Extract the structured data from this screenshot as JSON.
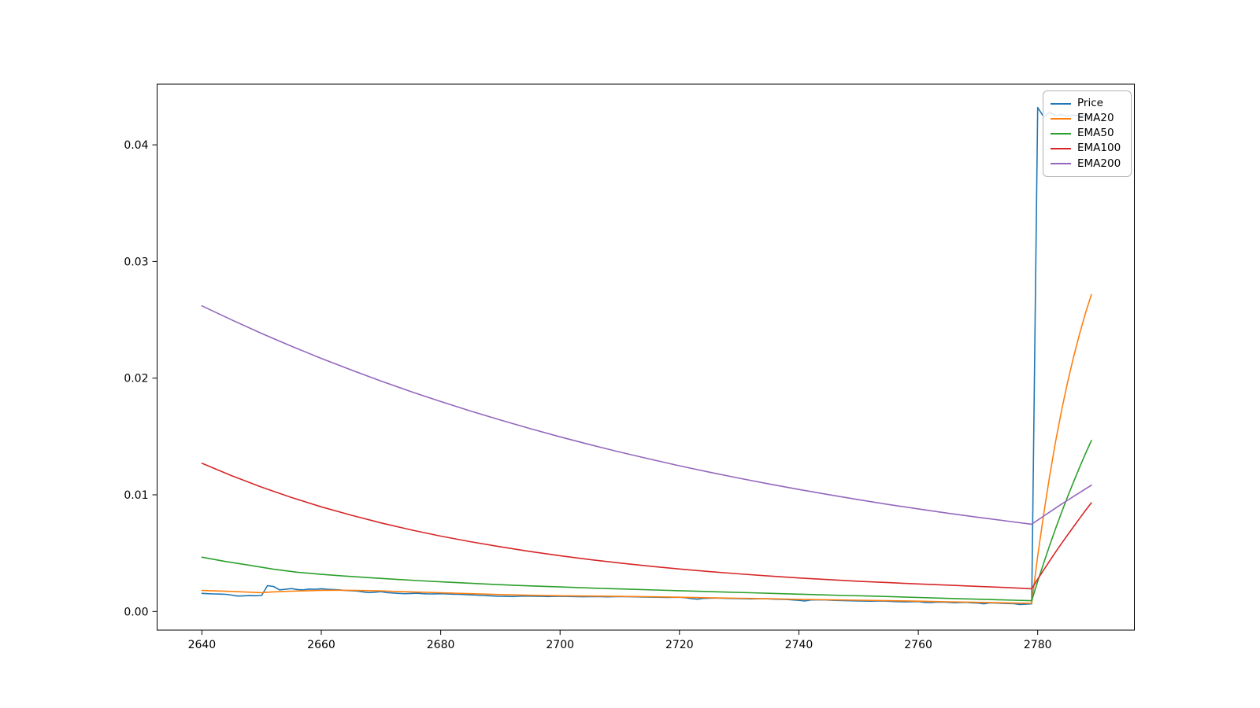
{
  "figure": {
    "background": "#ffffff"
  },
  "chart_data": {
    "type": "line",
    "title": "",
    "xlabel": "",
    "ylabel": "",
    "grid": false,
    "legend_position": "upper right",
    "xlim": [
      2632.5,
      2796.2
    ],
    "ylim": [
      -0.0016,
      0.0452
    ],
    "x_ticks": [
      2640,
      2660,
      2680,
      2700,
      2720,
      2740,
      2760,
      2780
    ],
    "y_ticks": [
      0.0,
      0.01,
      0.02,
      0.03,
      0.04
    ],
    "y_tick_labels": [
      "0.00",
      "0.01",
      "0.02",
      "0.03",
      "0.04"
    ],
    "series": [
      {
        "name": "Price",
        "color": "#1f77b4",
        "points": [
          [
            2640,
            0.00155
          ],
          [
            2641,
            0.00152
          ],
          [
            2642,
            0.0015
          ],
          [
            2643,
            0.00149
          ],
          [
            2644,
            0.00147
          ],
          [
            2645,
            0.0014
          ],
          [
            2646,
            0.00132
          ],
          [
            2647,
            0.00134
          ],
          [
            2648,
            0.00136
          ],
          [
            2649,
            0.00135
          ],
          [
            2650,
            0.00137
          ],
          [
            2651,
            0.00222
          ],
          [
            2652,
            0.00214
          ],
          [
            2653,
            0.00185
          ],
          [
            2654,
            0.0019
          ],
          [
            2655,
            0.00196
          ],
          [
            2656,
            0.00188
          ],
          [
            2657,
            0.00185
          ],
          [
            2658,
            0.00192
          ],
          [
            2659,
            0.0019
          ],
          [
            2660,
            0.00195
          ],
          [
            2661,
            0.0019
          ],
          [
            2662,
            0.00188
          ],
          [
            2663,
            0.00185
          ],
          [
            2664,
            0.0018
          ],
          [
            2665,
            0.00178
          ],
          [
            2666,
            0.00175
          ],
          [
            2667,
            0.00168
          ],
          [
            2668,
            0.00162
          ],
          [
            2669,
            0.00165
          ],
          [
            2670,
            0.0017
          ],
          [
            2671,
            0.00162
          ],
          [
            2672,
            0.00158
          ],
          [
            2673,
            0.00155
          ],
          [
            2674,
            0.00152
          ],
          [
            2675,
            0.00154
          ],
          [
            2676,
            0.00156
          ],
          [
            2677,
            0.00152
          ],
          [
            2678,
            0.0015
          ],
          [
            2679,
            0.00151
          ],
          [
            2680,
            0.00152
          ],
          [
            2681,
            0.0015
          ],
          [
            2682,
            0.00148
          ],
          [
            2683,
            0.00147
          ],
          [
            2684,
            0.00145
          ],
          [
            2685,
            0.00142
          ],
          [
            2686,
            0.0014
          ],
          [
            2687,
            0.00137
          ],
          [
            2688,
            0.00135
          ],
          [
            2689,
            0.00132
          ],
          [
            2690,
            0.0013
          ],
          [
            2691,
            0.00129
          ],
          [
            2692,
            0.00128
          ],
          [
            2693,
            0.0013
          ],
          [
            2694,
            0.00132
          ],
          [
            2695,
            0.00131
          ],
          [
            2696,
            0.0013
          ],
          [
            2697,
            0.00129
          ],
          [
            2698,
            0.00128
          ],
          [
            2699,
            0.00129
          ],
          [
            2700,
            0.0013
          ],
          [
            2702,
            0.00128
          ],
          [
            2704,
            0.00126
          ],
          [
            2706,
            0.00128
          ],
          [
            2708,
            0.00125
          ],
          [
            2710,
            0.00128
          ],
          [
            2712,
            0.00126
          ],
          [
            2714,
            0.00124
          ],
          [
            2716,
            0.00122
          ],
          [
            2718,
            0.0012
          ],
          [
            2720,
            0.00122
          ],
          [
            2721,
            0.00118
          ],
          [
            2722,
            0.0011
          ],
          [
            2723,
            0.00105
          ],
          [
            2724,
            0.00112
          ],
          [
            2725,
            0.00114
          ],
          [
            2726,
            0.00115
          ],
          [
            2728,
            0.00112
          ],
          [
            2730,
            0.0011
          ],
          [
            2732,
            0.00108
          ],
          [
            2734,
            0.0011
          ],
          [
            2736,
            0.00105
          ],
          [
            2738,
            0.00102
          ],
          [
            2740,
            0.00095
          ],
          [
            2741,
            0.0009
          ],
          [
            2742,
            0.00098
          ],
          [
            2744,
            0.001
          ],
          [
            2746,
            0.00095
          ],
          [
            2748,
            0.00092
          ],
          [
            2750,
            0.0009
          ],
          [
            2752,
            0.00088
          ],
          [
            2754,
            0.0009
          ],
          [
            2756,
            0.00085
          ],
          [
            2758,
            0.00082
          ],
          [
            2760,
            0.00085
          ],
          [
            2761,
            0.00078
          ],
          [
            2762,
            0.00076
          ],
          [
            2763,
            0.0008
          ],
          [
            2764,
            0.00081
          ],
          [
            2765,
            0.00078
          ],
          [
            2766,
            0.00075
          ],
          [
            2767,
            0.00077
          ],
          [
            2768,
            0.00078
          ],
          [
            2769,
            0.00074
          ],
          [
            2770,
            0.00072
          ],
          [
            2771,
            0.00065
          ],
          [
            2772,
            0.00074
          ],
          [
            2773,
            0.00072
          ],
          [
            2774,
            0.0007
          ],
          [
            2775,
            0.00068
          ],
          [
            2776,
            0.00067
          ],
          [
            2777,
            0.0006
          ],
          [
            2778,
            0.00062
          ],
          [
            2779,
            0.00065
          ],
          [
            2780,
            0.0432
          ],
          [
            2781,
            0.0424
          ],
          [
            2782,
            0.0428
          ],
          [
            2783,
            0.0425
          ],
          [
            2784,
            0.0426
          ],
          [
            2785,
            0.04245
          ],
          [
            2786,
            0.04255
          ],
          [
            2787,
            0.04248
          ],
          [
            2788,
            0.04252
          ],
          [
            2789,
            0.0425
          ]
        ]
      },
      {
        "name": "EMA20",
        "color": "#ff7f0e",
        "points": [
          [
            2640,
            0.0018
          ],
          [
            2645,
            0.00172
          ],
          [
            2650,
            0.00161
          ],
          [
            2651,
            0.00165
          ],
          [
            2653,
            0.0017
          ],
          [
            2655,
            0.00174
          ],
          [
            2658,
            0.00178
          ],
          [
            2660,
            0.00181
          ],
          [
            2663,
            0.00182
          ],
          [
            2666,
            0.0018
          ],
          [
            2670,
            0.00176
          ],
          [
            2675,
            0.00168
          ],
          [
            2680,
            0.0016
          ],
          [
            2685,
            0.00152
          ],
          [
            2690,
            0.00145
          ],
          [
            2695,
            0.00139
          ],
          [
            2700,
            0.00135
          ],
          [
            2705,
            0.00132
          ],
          [
            2710,
            0.00129
          ],
          [
            2715,
            0.00126
          ],
          [
            2720,
            0.00122
          ],
          [
            2725,
            0.00117
          ],
          [
            2730,
            0.00113
          ],
          [
            2735,
            0.00109
          ],
          [
            2740,
            0.00104
          ],
          [
            2745,
            0.001
          ],
          [
            2750,
            0.00096
          ],
          [
            2755,
            0.00092
          ],
          [
            2760,
            0.00088
          ],
          [
            2765,
            0.00083
          ],
          [
            2770,
            0.00078
          ],
          [
            2775,
            0.00073
          ],
          [
            2779,
            0.0007
          ],
          [
            2780,
            0.00475
          ],
          [
            2781,
            0.00834
          ],
          [
            2782,
            0.01162
          ],
          [
            2783,
            0.01456
          ],
          [
            2784,
            0.01722
          ],
          [
            2785,
            0.01963
          ],
          [
            2786,
            0.0218
          ],
          [
            2787,
            0.02377
          ],
          [
            2788,
            0.02555
          ],
          [
            2789,
            0.02717
          ]
        ]
      },
      {
        "name": "EMA50",
        "color": "#2ca02c",
        "points": [
          [
            2640,
            0.00465
          ],
          [
            2644,
            0.00428
          ],
          [
            2648,
            0.00396
          ],
          [
            2652,
            0.00362
          ],
          [
            2656,
            0.00336
          ],
          [
            2660,
            0.00318
          ],
          [
            2664,
            0.00303
          ],
          [
            2668,
            0.0029
          ],
          [
            2672,
            0.00277
          ],
          [
            2676,
            0.00265
          ],
          [
            2680,
            0.00254
          ],
          [
            2684,
            0.00244
          ],
          [
            2688,
            0.00234
          ],
          [
            2692,
            0.00225
          ],
          [
            2696,
            0.00217
          ],
          [
            2700,
            0.0021
          ],
          [
            2704,
            0.00203
          ],
          [
            2708,
            0.00196
          ],
          [
            2712,
            0.0019
          ],
          [
            2716,
            0.00184
          ],
          [
            2720,
            0.00178
          ],
          [
            2724,
            0.00172
          ],
          [
            2728,
            0.00166
          ],
          [
            2732,
            0.0016
          ],
          [
            2736,
            0.00154
          ],
          [
            2740,
            0.00148
          ],
          [
            2744,
            0.00142
          ],
          [
            2748,
            0.00137
          ],
          [
            2752,
            0.00132
          ],
          [
            2756,
            0.00126
          ],
          [
            2760,
            0.0012
          ],
          [
            2764,
            0.00114
          ],
          [
            2768,
            0.00108
          ],
          [
            2772,
            0.00102
          ],
          [
            2776,
            0.00096
          ],
          [
            2779,
            0.00092
          ],
          [
            2780,
            0.00258
          ],
          [
            2781,
            0.00414
          ],
          [
            2782,
            0.00566
          ],
          [
            2783,
            0.0071
          ],
          [
            2784,
            0.00849
          ],
          [
            2785,
            0.00982
          ],
          [
            2786,
            0.0111
          ],
          [
            2787,
            0.01234
          ],
          [
            2788,
            0.01352
          ],
          [
            2789,
            0.01465
          ]
        ]
      },
      {
        "name": "EMA100",
        "color": "#d62728",
        "points": [
          [
            2640,
            0.0127
          ],
          [
            2645,
            0.01163
          ],
          [
            2650,
            0.01065
          ],
          [
            2655,
            0.00977
          ],
          [
            2660,
            0.00897
          ],
          [
            2665,
            0.00825
          ],
          [
            2670,
            0.00759
          ],
          [
            2675,
            0.007
          ],
          [
            2680,
            0.00646
          ],
          [
            2685,
            0.00598
          ],
          [
            2690,
            0.00554
          ],
          [
            2695,
            0.00514
          ],
          [
            2700,
            0.00478
          ],
          [
            2705,
            0.00445
          ],
          [
            2710,
            0.00415
          ],
          [
            2715,
            0.00388
          ],
          [
            2720,
            0.00364
          ],
          [
            2725,
            0.00342
          ],
          [
            2730,
            0.00322
          ],
          [
            2735,
            0.00304
          ],
          [
            2740,
            0.00287
          ],
          [
            2745,
            0.00273
          ],
          [
            2750,
            0.00259
          ],
          [
            2755,
            0.00247
          ],
          [
            2760,
            0.00236
          ],
          [
            2765,
            0.00226
          ],
          [
            2770,
            0.00215
          ],
          [
            2775,
            0.00205
          ],
          [
            2779,
            0.00195
          ],
          [
            2780,
            0.00277
          ],
          [
            2781,
            0.00355
          ],
          [
            2782,
            0.00433
          ],
          [
            2783,
            0.00509
          ],
          [
            2784,
            0.00583
          ],
          [
            2785,
            0.00655
          ],
          [
            2786,
            0.00726
          ],
          [
            2787,
            0.00796
          ],
          [
            2788,
            0.00865
          ],
          [
            2789,
            0.00932
          ]
        ]
      },
      {
        "name": "EMA200",
        "color": "#9467bd",
        "points": [
          [
            2640,
            0.0262
          ],
          [
            2645,
            0.02499
          ],
          [
            2650,
            0.02383
          ],
          [
            2655,
            0.02274
          ],
          [
            2660,
            0.02169
          ],
          [
            2665,
            0.0207
          ],
          [
            2670,
            0.01975
          ],
          [
            2675,
            0.01885
          ],
          [
            2680,
            0.018
          ],
          [
            2685,
            0.01718
          ],
          [
            2690,
            0.01641
          ],
          [
            2695,
            0.01567
          ],
          [
            2700,
            0.01497
          ],
          [
            2705,
            0.0143
          ],
          [
            2710,
            0.01367
          ],
          [
            2715,
            0.01307
          ],
          [
            2720,
            0.01249
          ],
          [
            2725,
            0.01194
          ],
          [
            2730,
            0.01142
          ],
          [
            2735,
            0.01093
          ],
          [
            2740,
            0.01046
          ],
          [
            2745,
            0.01001
          ],
          [
            2750,
            0.00958
          ],
          [
            2755,
            0.00917
          ],
          [
            2760,
            0.00879
          ],
          [
            2765,
            0.00842
          ],
          [
            2770,
            0.00807
          ],
          [
            2775,
            0.00774
          ],
          [
            2779,
            0.00748
          ],
          [
            2780,
            0.00783
          ],
          [
            2781,
            0.00818
          ],
          [
            2782,
            0.00852
          ],
          [
            2783,
            0.00886
          ],
          [
            2784,
            0.0092
          ],
          [
            2785,
            0.00953
          ],
          [
            2786,
            0.00986
          ],
          [
            2787,
            0.01018
          ],
          [
            2788,
            0.0105
          ],
          [
            2789,
            0.01082
          ]
        ]
      }
    ]
  }
}
